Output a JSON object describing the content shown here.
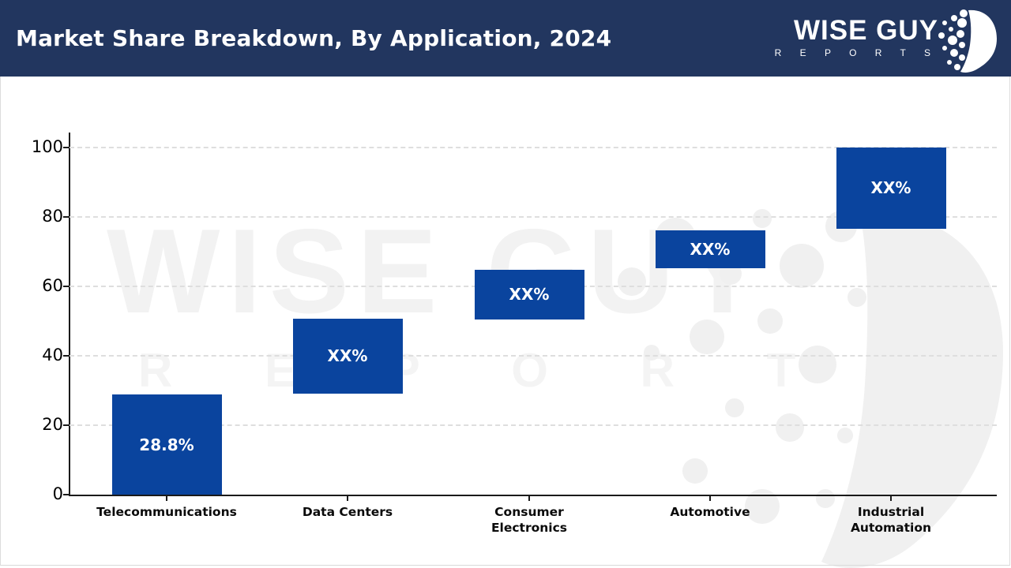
{
  "header": {
    "title": "Market Share Breakdown, By Application, 2024",
    "logo": {
      "name": "WISE GUY",
      "tagline": "R E P O R T S"
    }
  },
  "watermark": {
    "line1": "WISE GUY",
    "line2": "R E P O R T S"
  },
  "theme": {
    "header_bg": "#22365f",
    "body_bg": "#ffffff"
  },
  "chart_data": {
    "type": "bar",
    "subtype": "floating-waterfall",
    "title": "Market Share Breakdown, By Application, 2024",
    "categories": [
      "Telecommunications",
      "Data Centers",
      "Consumer Electronics",
      "Automotive",
      "Industrial Automation"
    ],
    "category_lines": [
      [
        "Telecommunications"
      ],
      [
        "Data Centers"
      ],
      [
        "Consumer",
        "Electronics"
      ],
      [
        "Automotive"
      ],
      [
        "Industrial",
        "Automation"
      ]
    ],
    "series": [
      {
        "name": "Market Share (%)",
        "ranges": [
          [
            0,
            28.8
          ],
          [
            29.1,
            50.7
          ],
          [
            50.5,
            64.8
          ],
          [
            65.2,
            76.1
          ],
          [
            76.6,
            100
          ]
        ]
      }
    ],
    "bar_labels": [
      "28.8%",
      "XX%",
      "XX%",
      "XX%",
      "XX%"
    ],
    "ylim": [
      0,
      100
    ],
    "yticks": [
      0,
      20,
      40,
      60,
      80,
      100
    ],
    "grid": "horizontal-dashed",
    "legend": "none",
    "colors": {
      "bar": "#0a449e",
      "axis": "#1a1a1a",
      "grid": "#dedede",
      "bar_label": "#ffffff"
    }
  }
}
